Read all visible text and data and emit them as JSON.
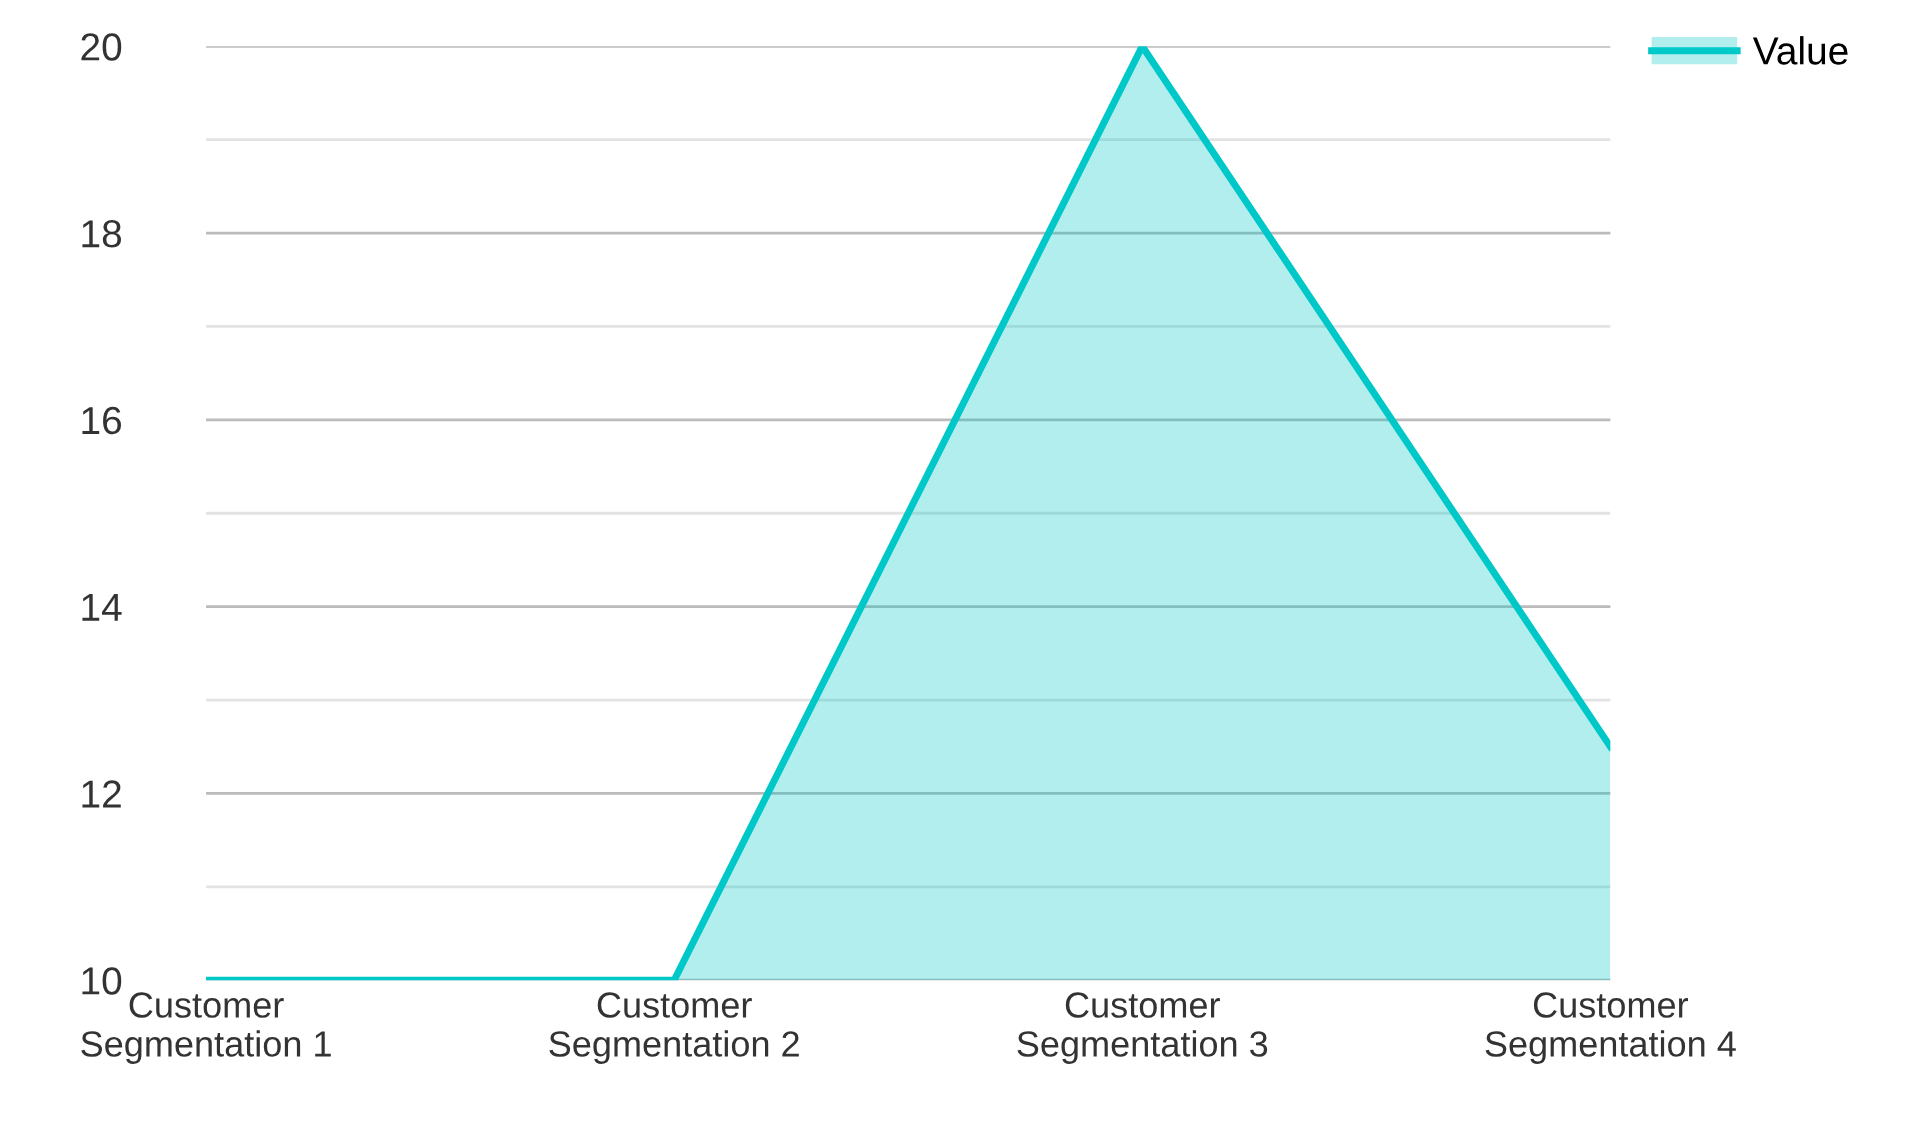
{
  "chart_data": {
    "type": "area",
    "categories": [
      "Customer Segmentation 1",
      "Customer Segmentation 2",
      "Customer Segmentation 3",
      "Customer Segmentation 4"
    ],
    "series": [
      {
        "name": "Value",
        "color": "#00c8c8",
        "values": [
          10,
          10,
          20,
          12.5
        ]
      }
    ],
    "ylim": [
      10,
      20
    ],
    "yticks": [
      10,
      {
        "value": 11,
        "label": null
      },
      12,
      {
        "value": 13,
        "label": null
      },
      14,
      {
        "value": 15,
        "label": null
      },
      16,
      {
        "value": 17,
        "label": null
      },
      18,
      {
        "value": 19,
        "label": null
      },
      20
    ],
    "grid": "y",
    "legend": "top right"
  }
}
